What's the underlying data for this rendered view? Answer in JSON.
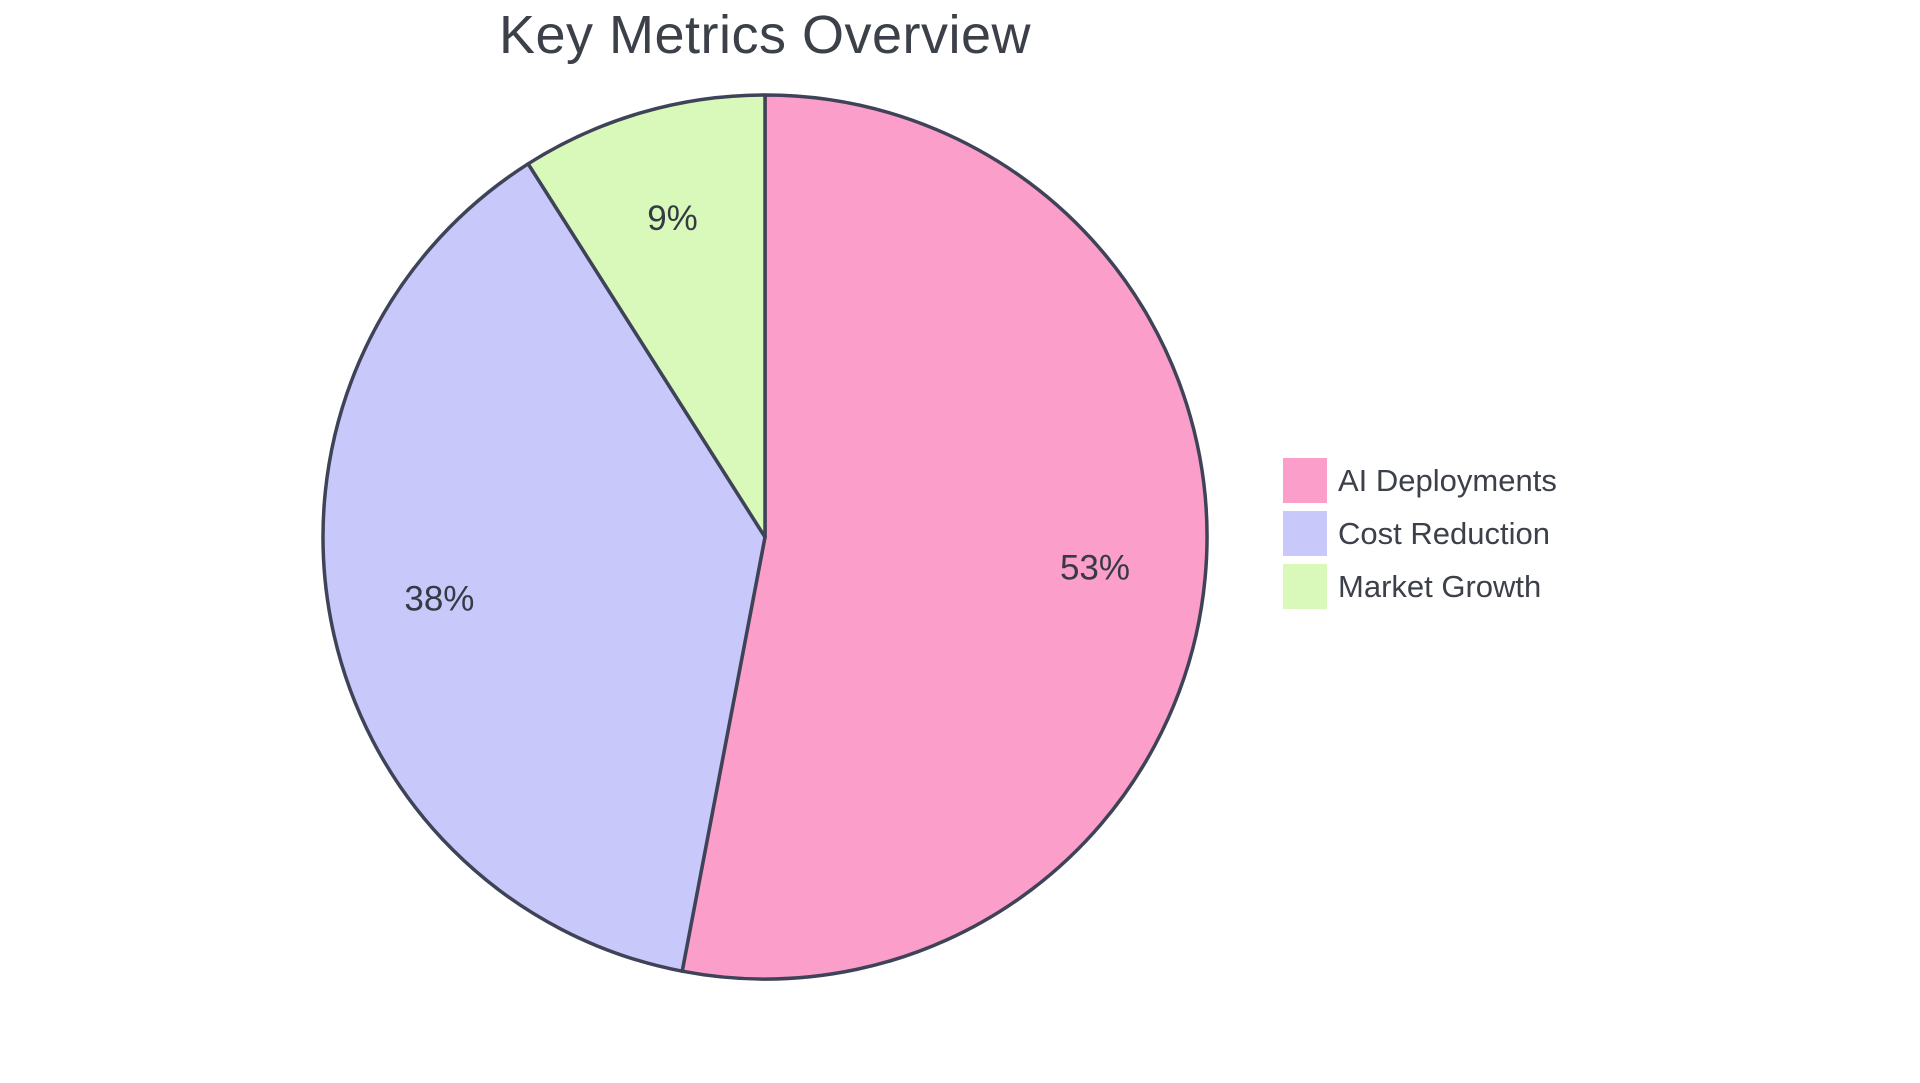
{
  "chart_data": {
    "type": "pie",
    "title": "Key Metrics Overview",
    "slices": [
      {
        "label": "AI Deployments",
        "value": 53,
        "display": "53%",
        "color": "#FC9ECA"
      },
      {
        "label": "Cost Reduction",
        "value": 38,
        "display": "38%",
        "color": "#C8C9FA"
      },
      {
        "label": "Market Growth",
        "value": 9,
        "display": "9%",
        "color": "#D8F9BA"
      }
    ],
    "start_angle_deg": 0,
    "direction": "clockwise",
    "legend_position": "right",
    "stroke_color": "#3F4358",
    "stroke_width": 3.5,
    "label_color": "#363A44",
    "title_color": "#3C4049",
    "background": "#FFFFFF"
  }
}
